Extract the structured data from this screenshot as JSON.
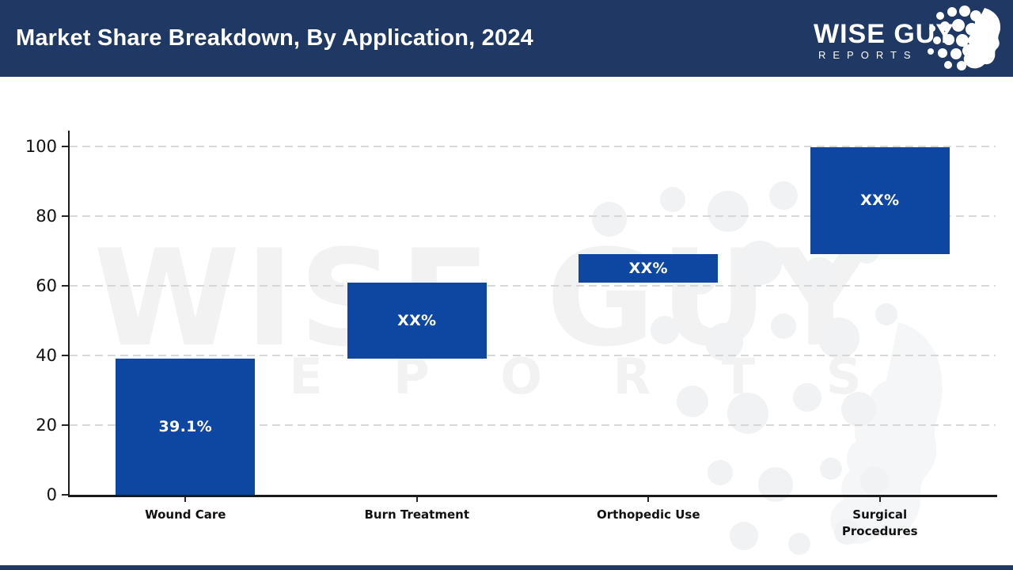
{
  "header": {
    "title": "Market Share Breakdown, By Application, 2024",
    "logo": {
      "line1": "WISE GUY",
      "line2": "R E P O R T S"
    }
  },
  "watermark": {
    "line1": "WISE GUY",
    "line2": "R E P O R T S"
  },
  "colors": {
    "header_bg": "#1f3864",
    "bar": "#0d47a1",
    "grid": "#d7d7d7",
    "axis": "#1a1a1a",
    "bar_label": "#ffffff",
    "watermark": "#f2f2f4"
  },
  "chart_data": {
    "type": "waterfall",
    "title": "Market Share Breakdown, By Application, 2024",
    "categories": [
      "Wound Care",
      "Burn Treatment",
      "Orthopedic Use",
      "Surgical Procedures"
    ],
    "tick_labels": [
      "Wound Care",
      "Burn Treatment",
      "Orthopedic Use",
      "Surgical\nProcedures"
    ],
    "segments": [
      {
        "category": "Wound Care",
        "start": 0,
        "end": 39.1,
        "label": "39.1%"
      },
      {
        "category": "Burn Treatment",
        "start": 39.1,
        "end": 60.8,
        "label": "XX%"
      },
      {
        "category": "Orthopedic Use",
        "start": 60.8,
        "end": 69.1,
        "label": "XX%"
      },
      {
        "category": "Surgical Procedures",
        "start": 69.1,
        "end": 99.7,
        "label": "XX%"
      }
    ],
    "xlabel": "",
    "ylabel": "",
    "yticks": [
      0,
      20,
      40,
      60,
      80,
      100
    ],
    "ylim": [
      0,
      104.5
    ],
    "grid": "horizontal-dashed",
    "legend": "none",
    "bar_color": "#0d47a1",
    "value_label_color": "#ffffff"
  }
}
